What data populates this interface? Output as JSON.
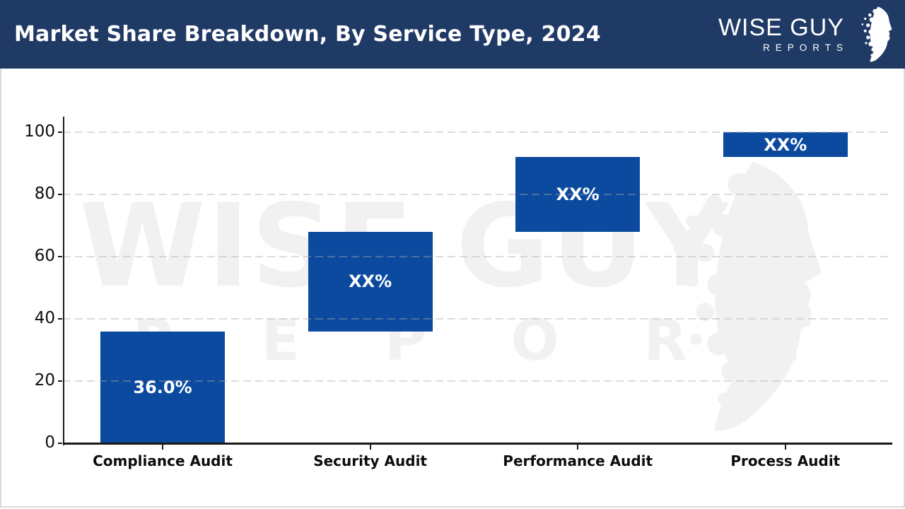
{
  "header": {
    "title": "Market Share Breakdown, By Service Type, 2024",
    "logo": {
      "line1": "WISE GUY",
      "line2": "REPORTS"
    }
  },
  "watermark": {
    "line1": "WISE GUY",
    "line2": "R E P O R T S"
  },
  "chart_data": {
    "type": "bar",
    "subtype": "waterfall-floating-bars",
    "title": "Market Share Breakdown, By Service Type, 2024",
    "categories": [
      "Compliance Audit",
      "Security Audit",
      "Performance Audit",
      "Process Audit"
    ],
    "segments": [
      {
        "start": 0,
        "end": 36,
        "label": "36.0%"
      },
      {
        "start": 36,
        "end": 68,
        "label": "XX%"
      },
      {
        "start": 68,
        "end": 92,
        "label": "XX%"
      },
      {
        "start": 92,
        "end": 100,
        "label": "XX%"
      }
    ],
    "yticks": [
      0,
      20,
      40,
      60,
      80,
      100
    ],
    "ylim": [
      0,
      100
    ],
    "xlabel": "",
    "ylabel": "",
    "grid": true,
    "legend": "none"
  },
  "colors": {
    "header_bg": "#203a66",
    "header_text": "#ffffff",
    "bar": "#0b4a9e",
    "bar_label": "#ffffff",
    "grid": "rgba(168,168,168,0.40)",
    "axis": "#1a1a1a",
    "watermark": "#f1f1f1",
    "frame_border": "#d9d9d9"
  }
}
